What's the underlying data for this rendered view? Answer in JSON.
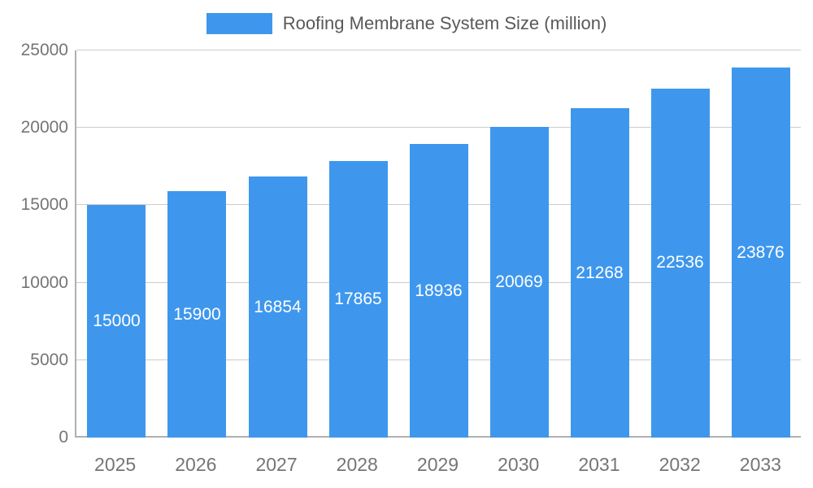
{
  "legend": {
    "label": "Roofing Membrane System Size (million)"
  },
  "colors": {
    "bar": "#3E97ED",
    "axis_text": "#757575",
    "legend_text": "#595959",
    "gridline": "#CCCCCC",
    "axis_line": "#B0B0B0",
    "value_label": "#FFFFFF",
    "background": "#FFFFFF"
  },
  "chart_data": {
    "type": "bar",
    "title": "Roofing Membrane System Size (million)",
    "categories": [
      "2025",
      "2026",
      "2027",
      "2028",
      "2029",
      "2030",
      "2031",
      "2032",
      "2033"
    ],
    "values": [
      15000,
      15900,
      16854,
      17865,
      18936,
      20069,
      21268,
      22536,
      23876
    ],
    "value_labels_shown": true,
    "xlabel": "",
    "ylabel": "",
    "ylim": [
      0,
      25000
    ],
    "yticks": [
      0,
      5000,
      10000,
      15000,
      20000,
      25000
    ],
    "grid": true,
    "legend_position": "top"
  }
}
